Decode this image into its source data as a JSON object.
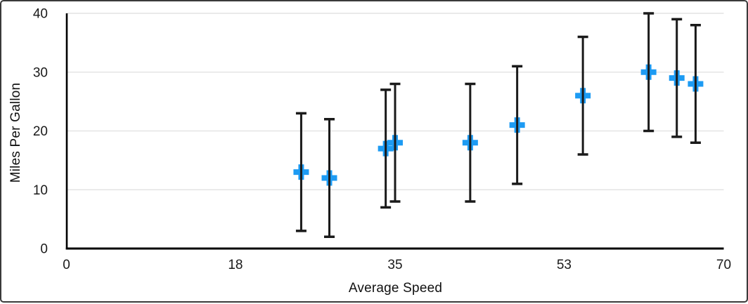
{
  "chart_data": {
    "type": "scatter",
    "title": "",
    "xlabel": "Average Speed",
    "ylabel": "Miles Per Gallon",
    "xlim": [
      0,
      70
    ],
    "ylim": [
      0,
      40
    ],
    "x_ticks": [
      0,
      18,
      35,
      53,
      70
    ],
    "y_ticks": [
      0,
      10,
      20,
      30,
      40
    ],
    "grid": "horizontal-gridlines-at-y-ticks",
    "legend": "none",
    "series": [
      {
        "name": "Miles Per Gallon vs Average Speed",
        "marker": "plus",
        "marker_color": "#1D9BF3",
        "error_bar_color": "#1A1A1A",
        "points": [
          {
            "x": 25,
            "y": 13,
            "error_plus": 10,
            "error_minus": 10
          },
          {
            "x": 28,
            "y": 12,
            "error_plus": 10,
            "error_minus": 10
          },
          {
            "x": 34,
            "y": 17,
            "error_plus": 10,
            "error_minus": 10
          },
          {
            "x": 35,
            "y": 18,
            "error_plus": 10,
            "error_minus": 10
          },
          {
            "x": 43,
            "y": 18,
            "error_plus": 10,
            "error_minus": 10
          },
          {
            "x": 48,
            "y": 21,
            "error_plus": 10,
            "error_minus": 10
          },
          {
            "x": 55,
            "y": 26,
            "error_plus": 10,
            "error_minus": 10
          },
          {
            "x": 62,
            "y": 30,
            "error_plus": 10,
            "error_minus": 10
          },
          {
            "x": 65,
            "y": 29,
            "error_plus": 10,
            "error_minus": 10
          },
          {
            "x": 67,
            "y": 28,
            "error_plus": 10,
            "error_minus": 10
          }
        ]
      }
    ]
  },
  "colors": {
    "background": "#FFFFFF",
    "frame_border": "#3A3A3A",
    "axis_line": "#000000",
    "gridline": "#E4E4E4",
    "tick_text": "#1A1A1A"
  }
}
